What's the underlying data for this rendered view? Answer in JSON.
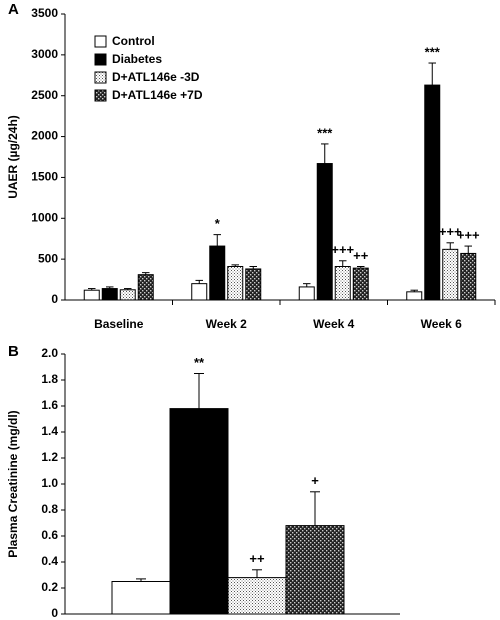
{
  "chart_data": [
    {
      "type": "bar",
      "panel": "A",
      "ylabel": "UAER (µg/24h)",
      "categories": [
        "Baseline",
        "Week 2",
        "Week 4",
        "Week 6"
      ],
      "ylim": [
        0,
        3500
      ],
      "yticks": [
        0,
        500,
        1000,
        1500,
        2000,
        2500,
        3000,
        3500
      ],
      "legend": "upper left",
      "series": [
        {
          "name": "Control",
          "color": "#ffffff",
          "pattern": "solid",
          "values": [
            120,
            200,
            160,
            100
          ],
          "errors": [
            20,
            40,
            40,
            20
          ],
          "annotations": [
            null,
            null,
            null,
            null
          ]
        },
        {
          "name": "Diabetes",
          "color": "#000000",
          "pattern": "solid",
          "values": [
            140,
            660,
            1670,
            2630
          ],
          "errors": [
            20,
            140,
            240,
            270
          ],
          "annotations": [
            null,
            "*",
            "***",
            "***"
          ]
        },
        {
          "name": "D+ATL146e -3D",
          "color": "#bbbbbb",
          "pattern": "dots",
          "values": [
            125,
            410,
            410,
            620
          ],
          "errors": [
            15,
            20,
            70,
            80
          ],
          "annotations": [
            null,
            null,
            "+++",
            "+++"
          ]
        },
        {
          "name": "D+ATL146e +7D",
          "color": "#333333",
          "pattern": "checks",
          "values": [
            310,
            380,
            390,
            570
          ],
          "errors": [
            25,
            30,
            20,
            90
          ],
          "annotations": [
            null,
            null,
            "++",
            "+++"
          ]
        }
      ]
    },
    {
      "type": "bar",
      "panel": "B",
      "ylabel": "Plasma Creatinine (mg/dl)",
      "categories": [
        null
      ],
      "ylim": [
        0,
        2.0
      ],
      "yticks": [
        0,
        0.2,
        0.4,
        0.6,
        0.8,
        {
          "value": 1.0,
          "label": "1.0"
        },
        1.2,
        1.4,
        1.6,
        1.8,
        {
          "value": 2.0,
          "label": "2.0"
        }
      ],
      "series": [
        {
          "color": "#ffffff",
          "pattern": "solid",
          "values": [
            0.25
          ],
          "errors": [
            0.02
          ],
          "annotations": [
            null
          ]
        },
        {
          "color": "#000000",
          "pattern": "solid",
          "values": [
            1.58
          ],
          "errors": [
            0.27
          ],
          "annotations": [
            "**"
          ]
        },
        {
          "color": "#bbbbbb",
          "pattern": "dots",
          "values": [
            0.28
          ],
          "errors": [
            0.06
          ],
          "annotations": [
            "++"
          ]
        },
        {
          "color": "#333333",
          "pattern": "checks",
          "values": [
            0.68
          ],
          "errors": [
            0.26
          ],
          "annotations": [
            "+"
          ]
        }
      ]
    }
  ]
}
